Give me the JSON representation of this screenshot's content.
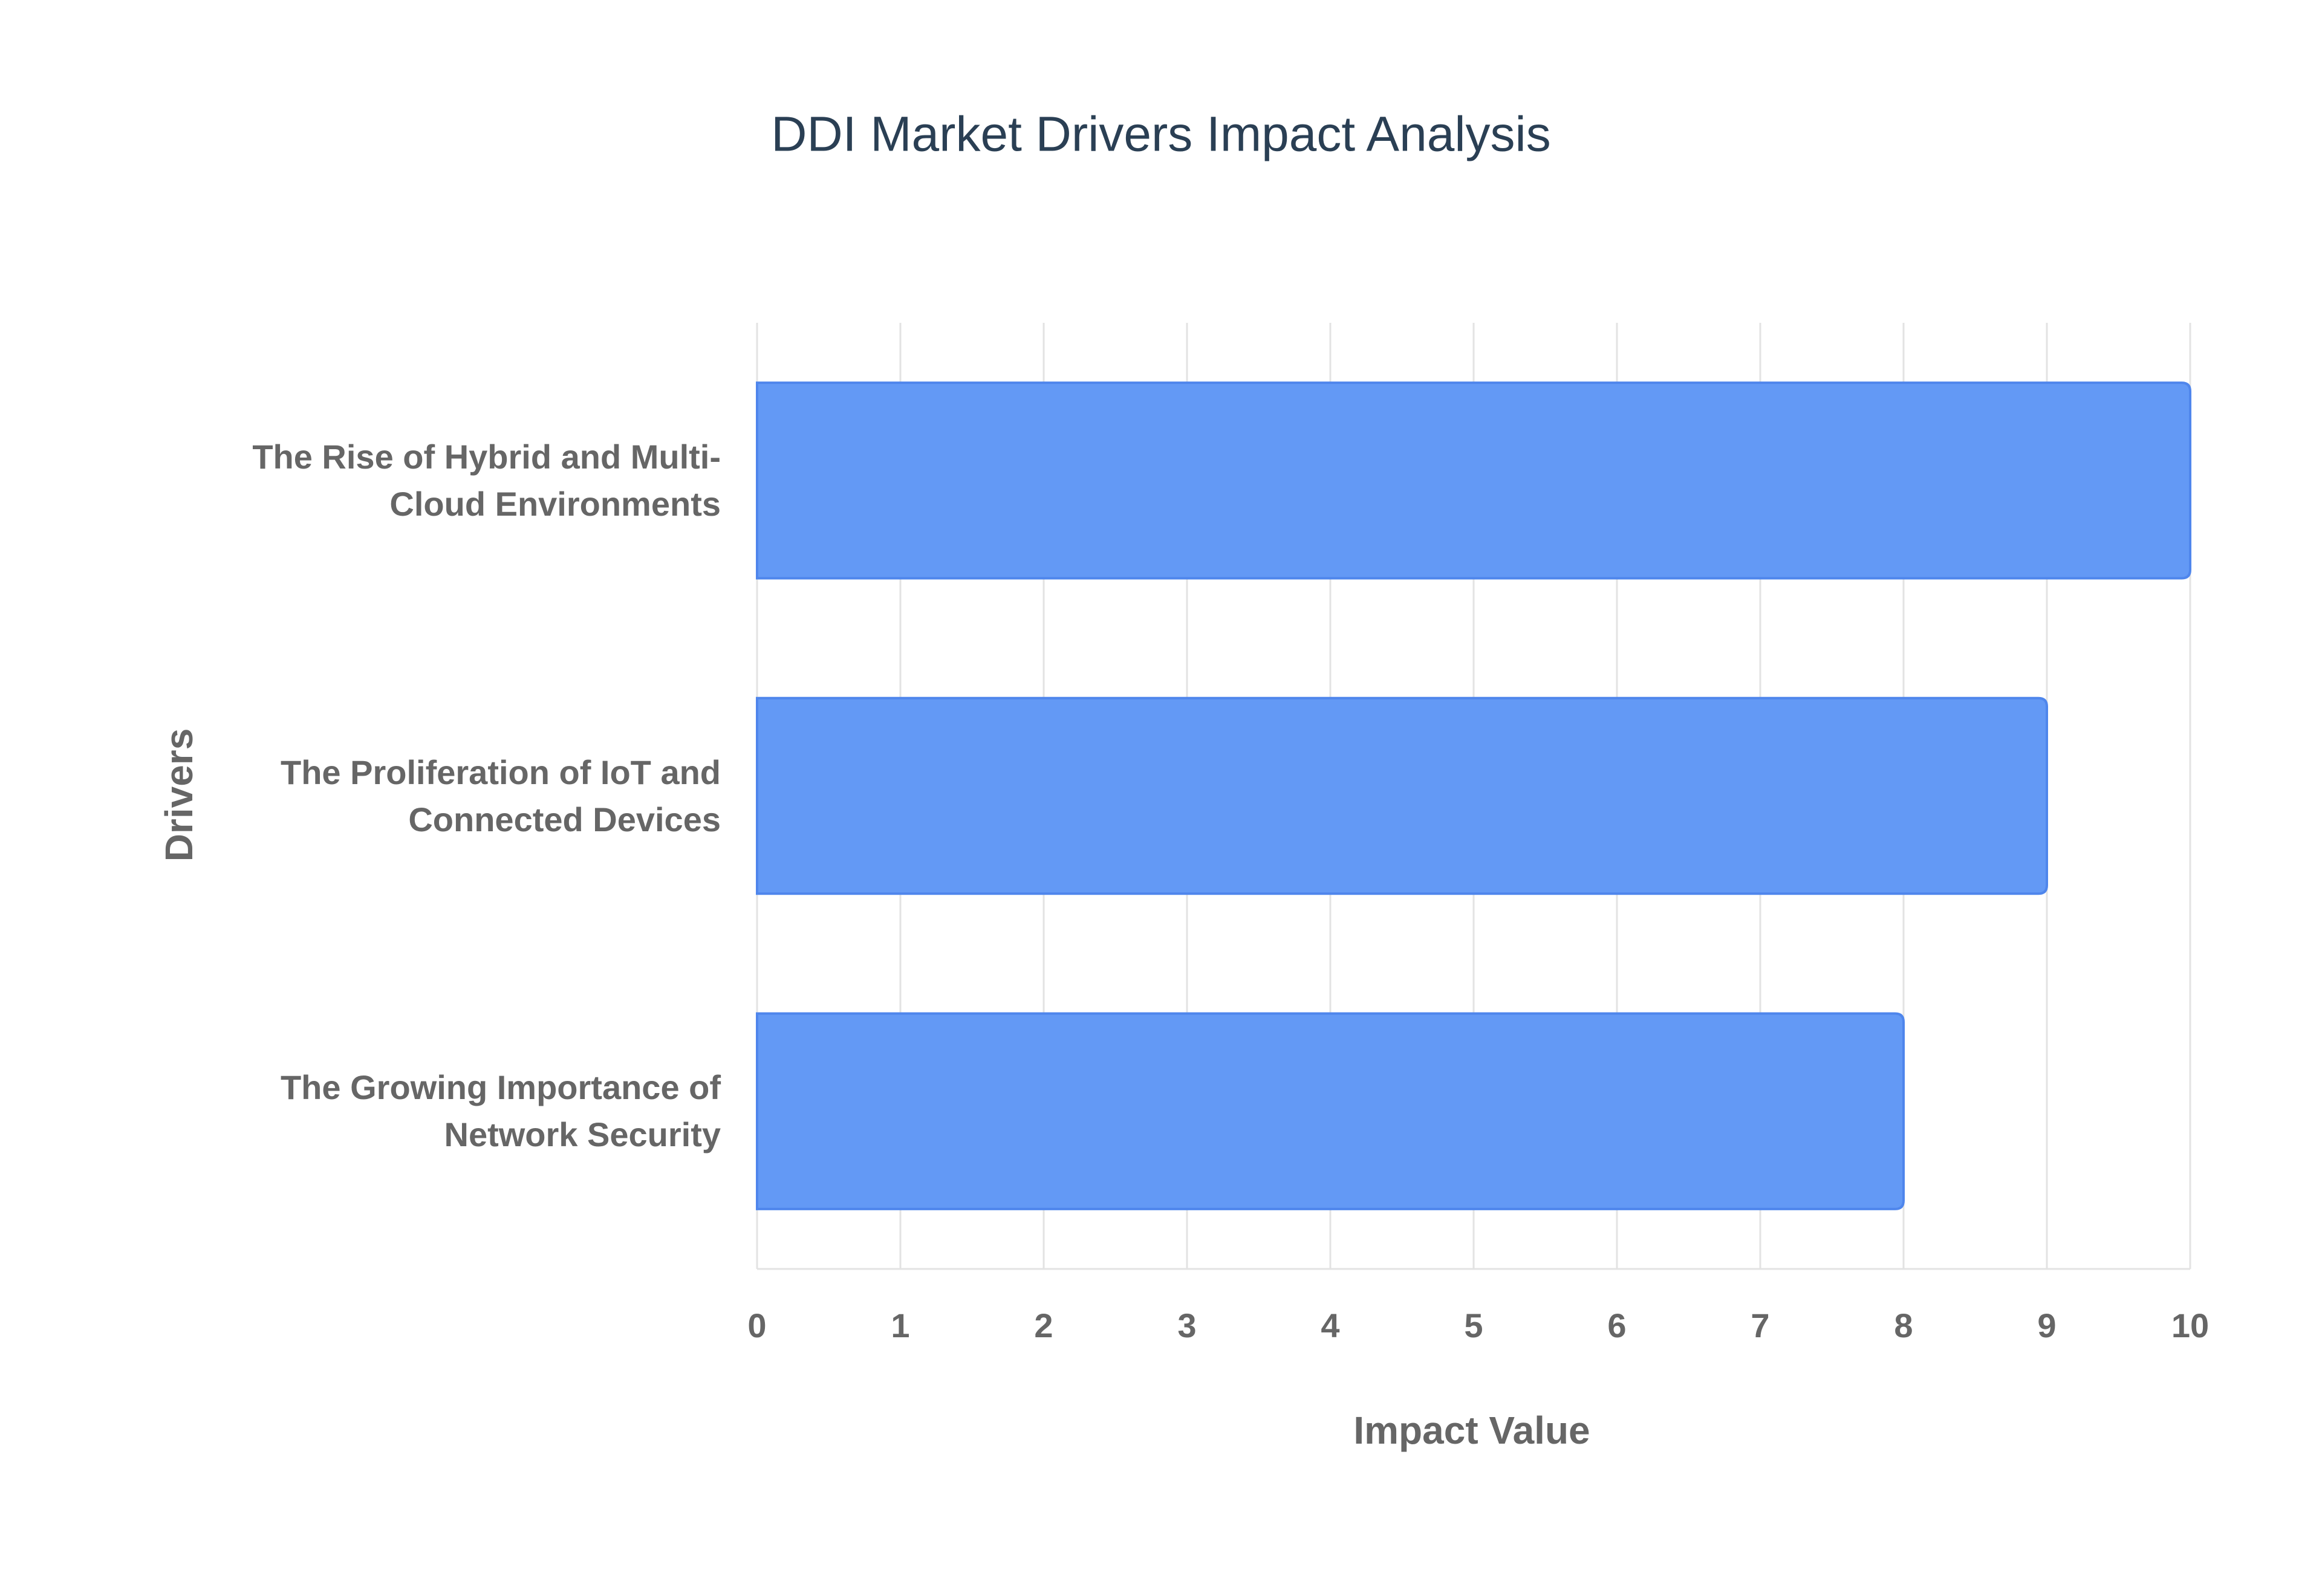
{
  "chart_data": {
    "type": "bar",
    "orientation": "horizontal",
    "title": "DDI Market Drivers Impact Analysis",
    "x_label": "Impact Value",
    "y_label": "Drivers",
    "categories": [
      "The Rise of Hybrid and Multi-Cloud Environments",
      "The Proliferation of IoT and Connected Devices",
      "The Growing Importance of Network Security"
    ],
    "values": [
      10,
      9,
      8
    ],
    "color": "#6399f5",
    "xlim": [
      0,
      10
    ],
    "xticks": [
      0,
      1,
      2,
      3,
      4,
      5,
      6,
      7,
      8,
      9,
      10
    ],
    "grid": true
  }
}
